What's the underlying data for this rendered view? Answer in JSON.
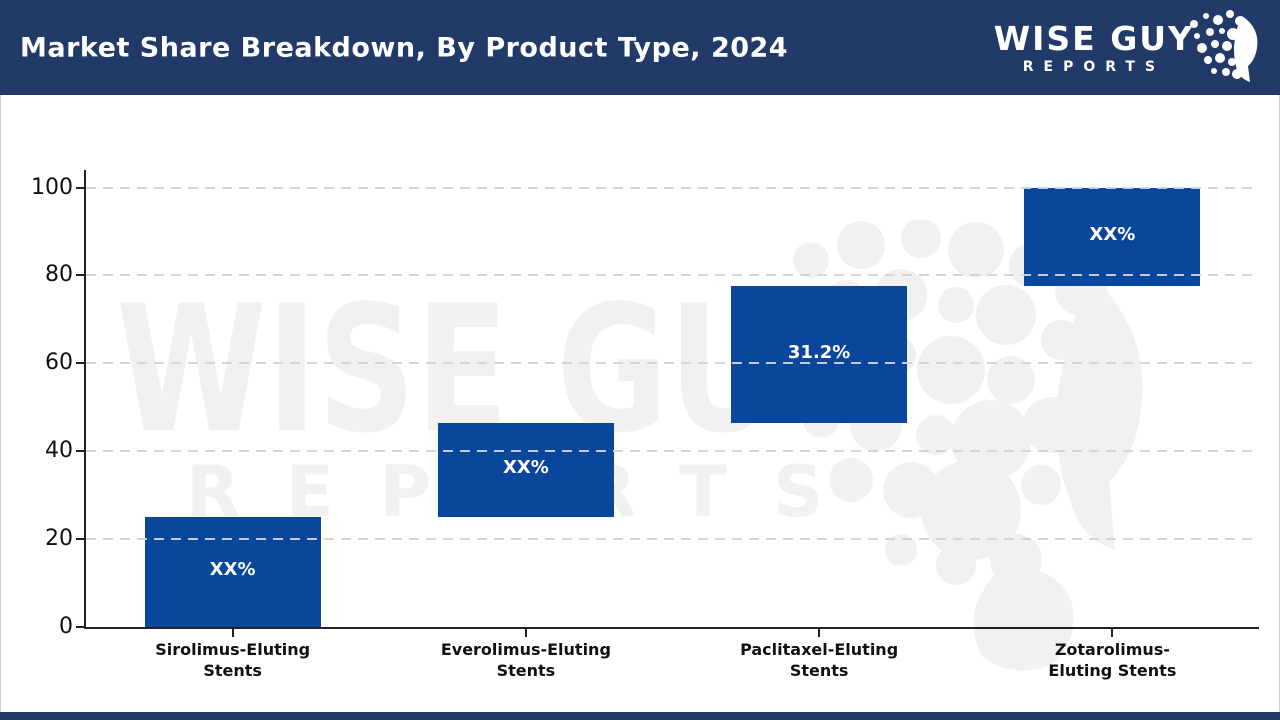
{
  "header": {
    "title": "Market Share Breakdown, By Product Type, 2024",
    "logo": {
      "line1": "WISE GUY",
      "line2": "REPORTS"
    }
  },
  "watermark": {
    "line1": "WISE GU",
    "line2": "REPORTS"
  },
  "colors": {
    "header_bg": "#223a68",
    "bar_blue": "#0a469c",
    "grid_gray": "#d9d9d9",
    "axis_black": "#222222",
    "watermark_gray": "#f1f1f1"
  },
  "chart_data": {
    "type": "bar",
    "subtype": "floating-stacked-segments",
    "title": "Market Share Breakdown, By Product Type, 2024",
    "categories": [
      "Sirolimus-Eluting Stents",
      "Everolimus-Eluting Stents",
      "Paclitaxel-Eluting Stents",
      "Zotarolimus-Eluting Stents"
    ],
    "category_lines": [
      [
        "Sirolimus-Eluting",
        "Stents"
      ],
      [
        "Everolimus-Eluting",
        "Stents"
      ],
      [
        "Paclitaxel-Eluting",
        "Stents"
      ],
      [
        "Zotarolimus-",
        "Eluting Stents"
      ]
    ],
    "segments": [
      {
        "category": "Sirolimus-Eluting Stents",
        "start": 0,
        "end": 25.0,
        "label": "XX%"
      },
      {
        "category": "Everolimus-Eluting Stents",
        "start": 25.0,
        "end": 46.4,
        "label": "XX%"
      },
      {
        "category": "Paclitaxel-Eluting Stents",
        "start": 46.4,
        "end": 77.6,
        "label": "31.2%"
      },
      {
        "category": "Zotarolimus-Eluting Stents",
        "start": 77.6,
        "end": 100.0,
        "label": "XX%"
      }
    ],
    "values": [
      25.0,
      21.4,
      31.2,
      22.4
    ],
    "yticks": [
      0,
      20,
      40,
      60,
      80,
      100
    ],
    "ylim": [
      0,
      100
    ],
    "xlabel": "",
    "ylabel": "",
    "grid": "horizontal-dashed",
    "legend": "none",
    "bar_color": "#0a469c"
  }
}
